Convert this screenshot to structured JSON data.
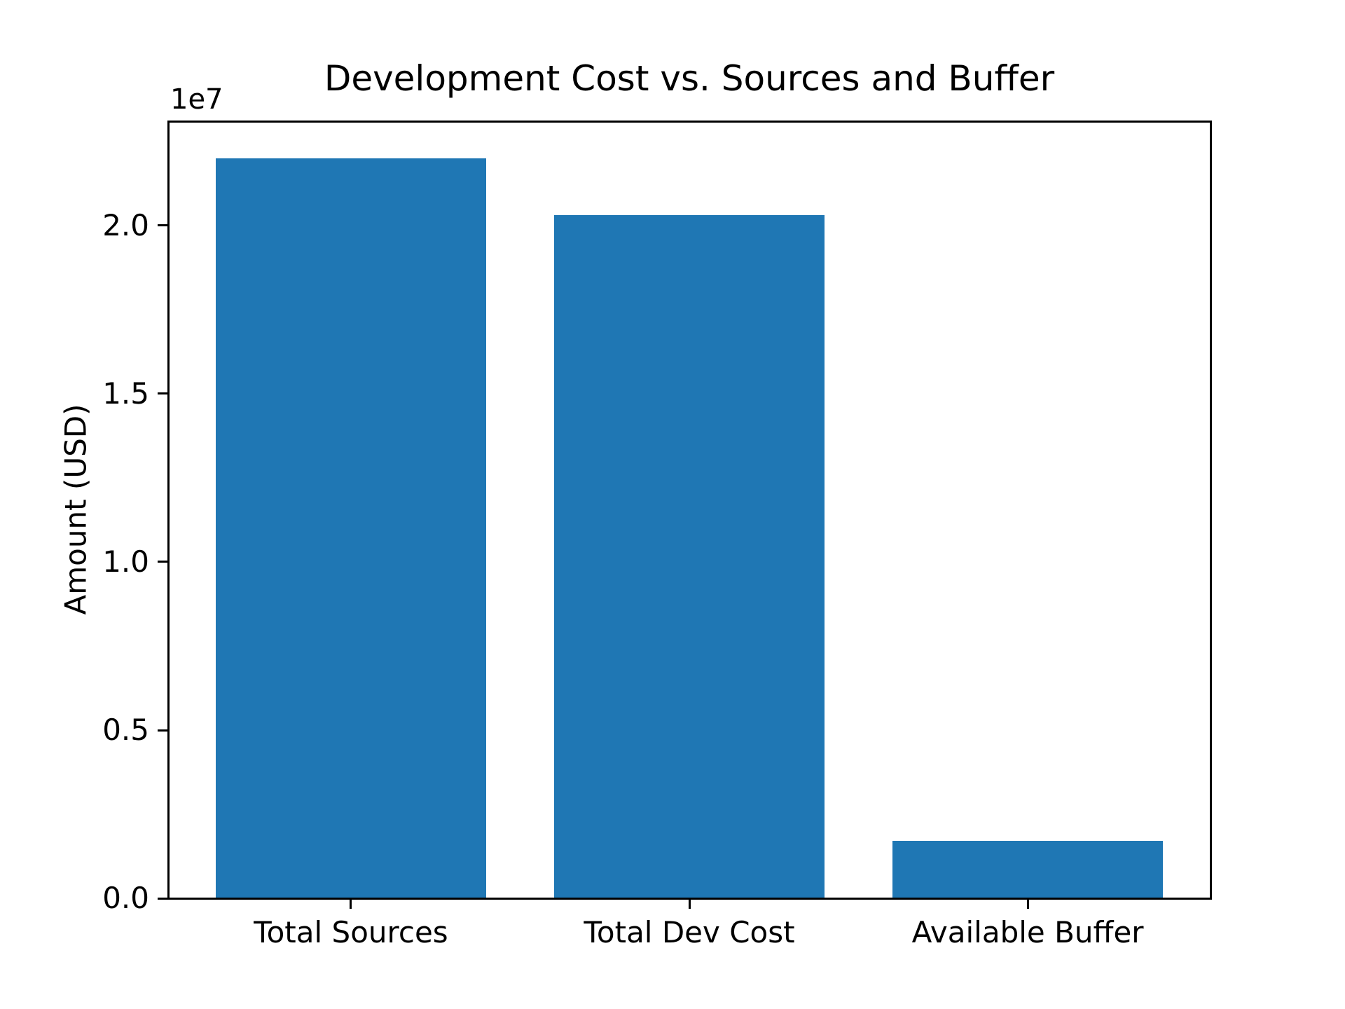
{
  "chart_data": {
    "type": "bar",
    "title": "Development Cost vs. Sources and Buffer",
    "categories": [
      "Total Sources",
      "Total Dev Cost",
      "Available Buffer"
    ],
    "values": [
      22000000,
      20300000,
      1700000
    ],
    "xlabel": "",
    "ylabel": "Amount (USD)",
    "offset_text": "1e7",
    "ylim": [
      0,
      23100000
    ],
    "xlim": [
      -0.54,
      2.54
    ],
    "bar_width": 0.8,
    "yticks": [
      0,
      5000000,
      10000000,
      15000000,
      20000000
    ],
    "ytick_labels": [
      "0.0",
      "0.5",
      "1.0",
      "1.5",
      "2.0"
    ],
    "bar_color": "#1f77b4",
    "axis_color": "#000000",
    "grid": false,
    "legend": null
  }
}
